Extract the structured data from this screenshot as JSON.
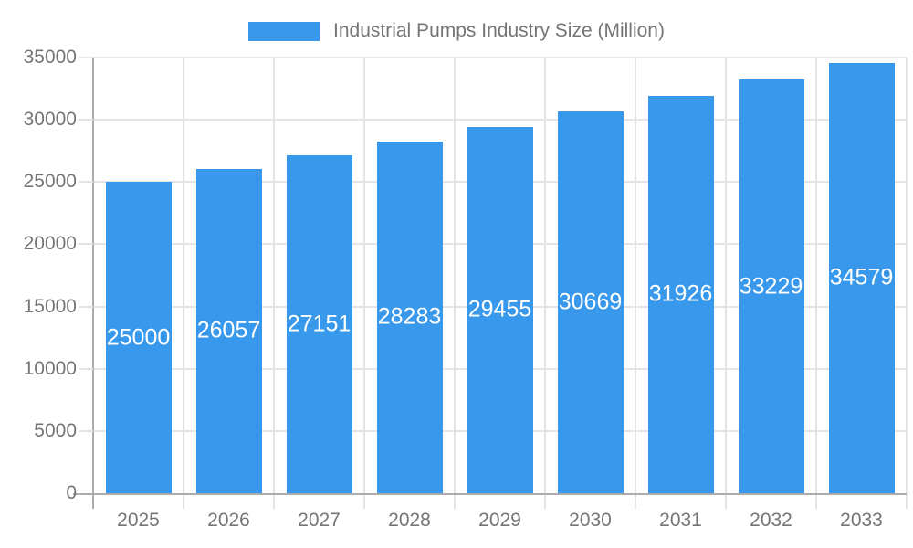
{
  "legend": {
    "series_label": "Industrial Pumps Industry Size (Million)"
  },
  "colors": {
    "bar": "#3898EC",
    "grid": "#E4E4E4",
    "axis": "#ABABAB",
    "label_text": "#757575",
    "value_label_text": "#FFFFFF",
    "background": "#FFFFFF"
  },
  "chart_data": {
    "type": "bar",
    "title": "Industrial Pumps Industry Size (Million)",
    "xlabel": "",
    "ylabel": "",
    "categories": [
      "2025",
      "2026",
      "2027",
      "2028",
      "2029",
      "2030",
      "2031",
      "2032",
      "2033"
    ],
    "values": [
      25000,
      26057,
      27151,
      28283,
      29455,
      30669,
      31926,
      33229,
      34579
    ],
    "yticks": [
      0,
      5000,
      10000,
      15000,
      20000,
      25000,
      30000,
      35000
    ],
    "ylim": [
      0,
      35000
    ],
    "grid": true,
    "legend_position": "top-center",
    "value_labels": "inside-center"
  }
}
